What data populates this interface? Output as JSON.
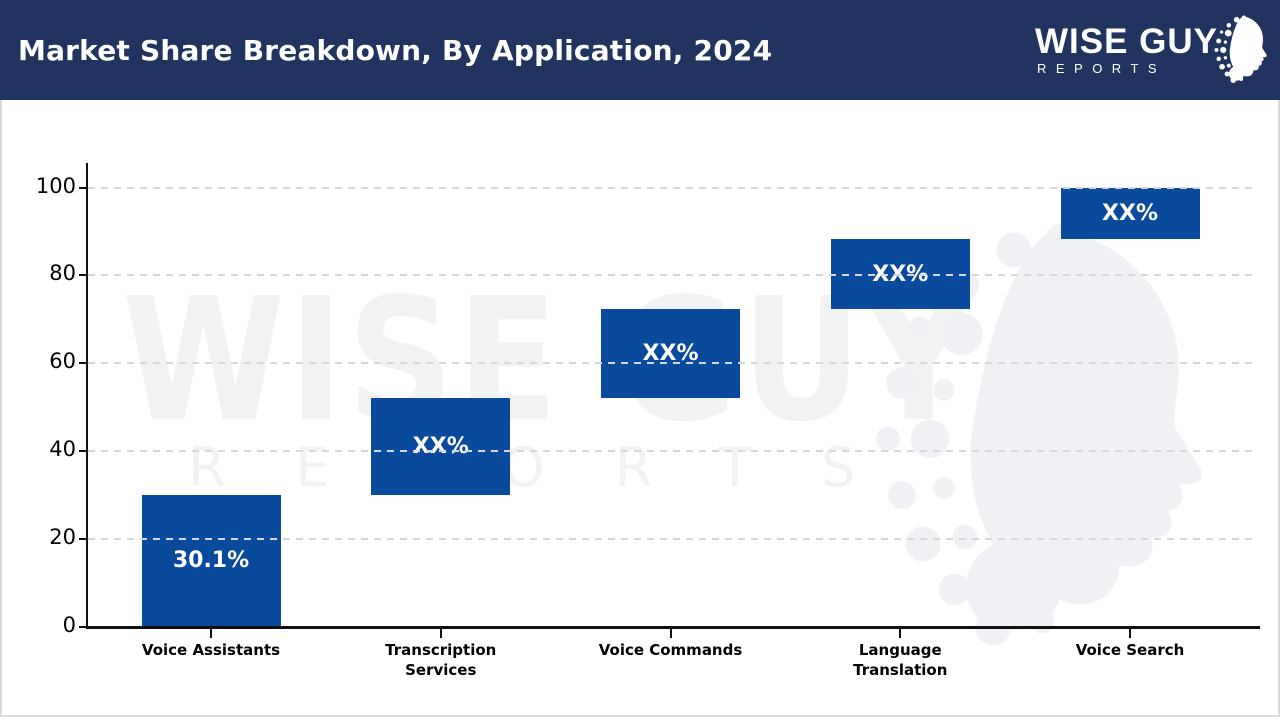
{
  "header": {
    "title": "Market Share Breakdown, By Application, 2024",
    "logo": {
      "line1": "WISE GUY",
      "line2": "REPORTS"
    }
  },
  "watermark": {
    "line1": "WISE GUY",
    "line2": "REPORTS"
  },
  "chart_data": {
    "type": "bar",
    "subtype": "waterfall",
    "title": "Market Share Breakdown, By Application, 2024",
    "categories": [
      "Voice Assistants",
      "Transcription Services",
      "Voice Commands",
      "Language Translation",
      "Voice Search"
    ],
    "category_lines": [
      [
        "Voice Assistants"
      ],
      [
        "Transcription",
        "Services"
      ],
      [
        "Voice Commands"
      ],
      [
        "Language",
        "Translation"
      ],
      [
        "Voice Search"
      ]
    ],
    "segments": [
      {
        "category": "Voice Assistants",
        "start": 0,
        "end": 30.1,
        "label": "30.1%"
      },
      {
        "category": "Transcription Services",
        "start": 30.1,
        "end": 52.2,
        "label": "XX%"
      },
      {
        "category": "Voice Commands",
        "start": 52.2,
        "end": 72.3,
        "label": "XX%"
      },
      {
        "category": "Language Translation",
        "start": 72.3,
        "end": 88.3,
        "label": "XX%"
      },
      {
        "category": "Voice Search",
        "start": 88.3,
        "end": 100,
        "label": "XX%"
      }
    ],
    "xlabel": "",
    "ylabel": "",
    "ylim": [
      0,
      100
    ],
    "yticks": [
      0,
      20,
      40,
      60,
      80,
      100
    ],
    "yticklabels": [
      "0",
      "20",
      "40",
      "60",
      "80",
      "100"
    ],
    "grid": "horizontal dashed",
    "legend": "none",
    "bar_color": "#0a4a9c",
    "bar_label_color": "#ffffff"
  },
  "colors": {
    "header_bg": "#20345f",
    "bar": "#0a4a9c",
    "grid": "#d7d7d9",
    "axis": "#111111",
    "watermark": "#f1f2f4",
    "edge_border": "#dadada"
  }
}
